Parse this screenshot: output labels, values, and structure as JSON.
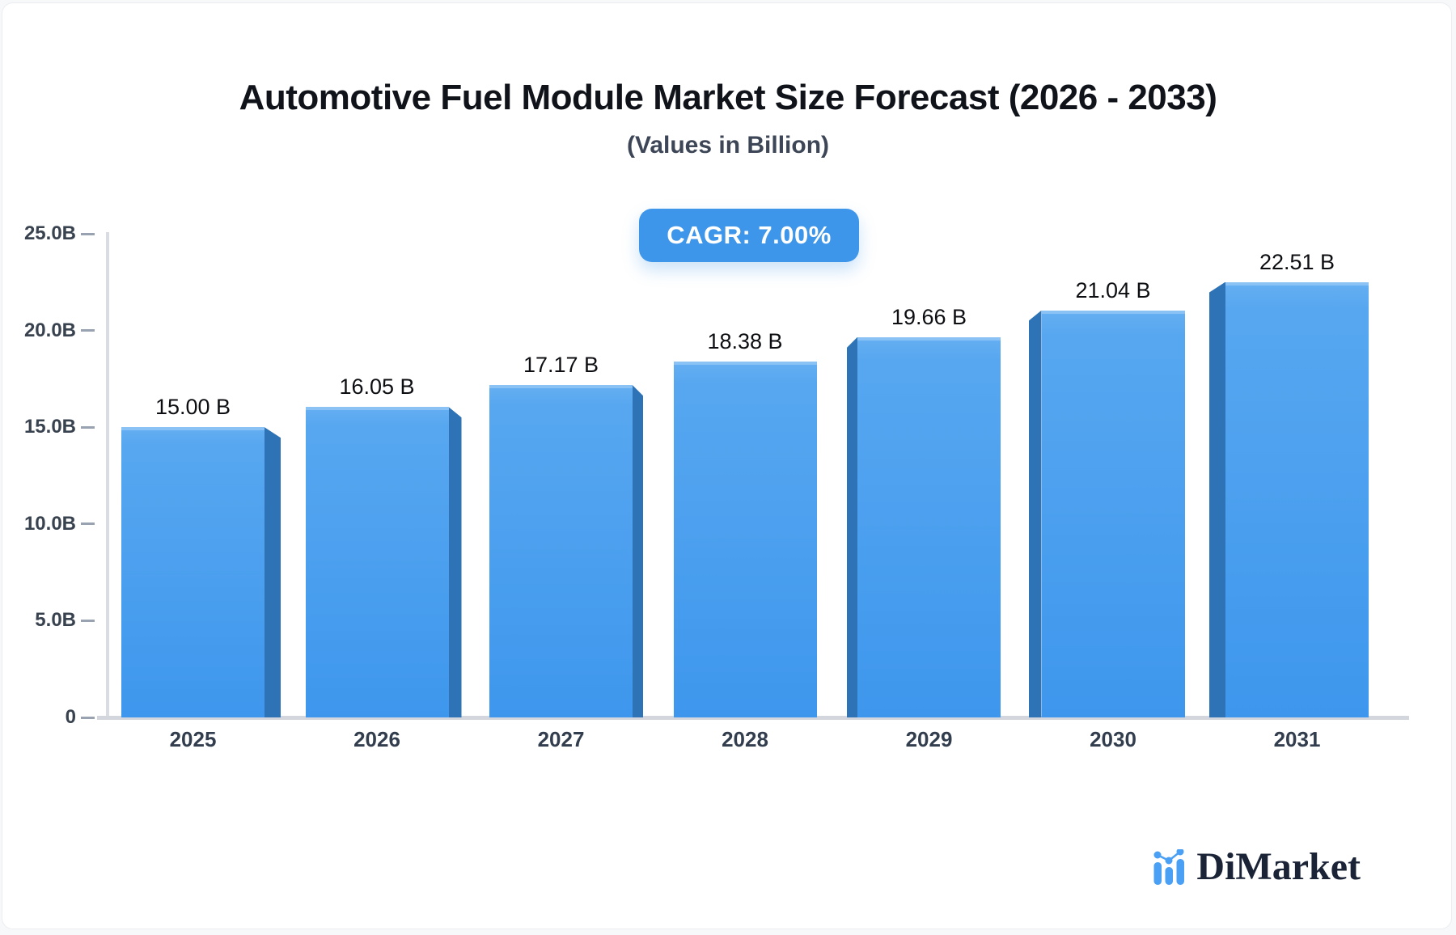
{
  "page": {
    "background": "#f7f8fa",
    "card_background": "#ffffff"
  },
  "header": {
    "title": "Automotive Fuel Module Market Size Forecast (2026 - 2033)",
    "subtitle": "(Values in Billion)"
  },
  "badge": {
    "label": "CAGR: 7.00%",
    "background": "#3e96ea",
    "text_color": "#ffffff"
  },
  "chart_data": {
    "type": "bar",
    "title": "Automotive Fuel Module Market Size Forecast (2026 - 2033)",
    "subtitle": "(Values in Billion)",
    "categories": [
      "2025",
      "2026",
      "2027",
      "2028",
      "2029",
      "2030",
      "2031"
    ],
    "values": [
      15.0,
      16.05,
      17.17,
      18.38,
      19.66,
      21.04,
      22.51
    ],
    "value_labels": [
      "15.00 B",
      "16.05 B",
      "17.17 B",
      "18.38 B",
      "19.66 B",
      "21.04 B",
      "22.51 B"
    ],
    "yticks": [
      {
        "label": "25.0B",
        "value": 25
      },
      {
        "label": "20.0B",
        "value": 20
      },
      {
        "label": "15.0B",
        "value": 15
      },
      {
        "label": "10.0B",
        "value": 10
      },
      {
        "label": "5.0B",
        "value": 5
      },
      {
        "label": "0",
        "value": 0
      }
    ],
    "ylim": [
      0,
      25
    ],
    "xlabel": "",
    "ylabel": "",
    "grid": false,
    "legend": false,
    "annotation": "CAGR: 7.00%",
    "bar_color_top": "#66aff2",
    "bar_color_bottom": "#3e97ed",
    "bar_side_color": "#2d73b5"
  },
  "logo": {
    "text": "DiMarket",
    "icon": "bar-chart-logo-icon",
    "text_color": "#1b2437",
    "accent_color": "#4aa0f5"
  }
}
